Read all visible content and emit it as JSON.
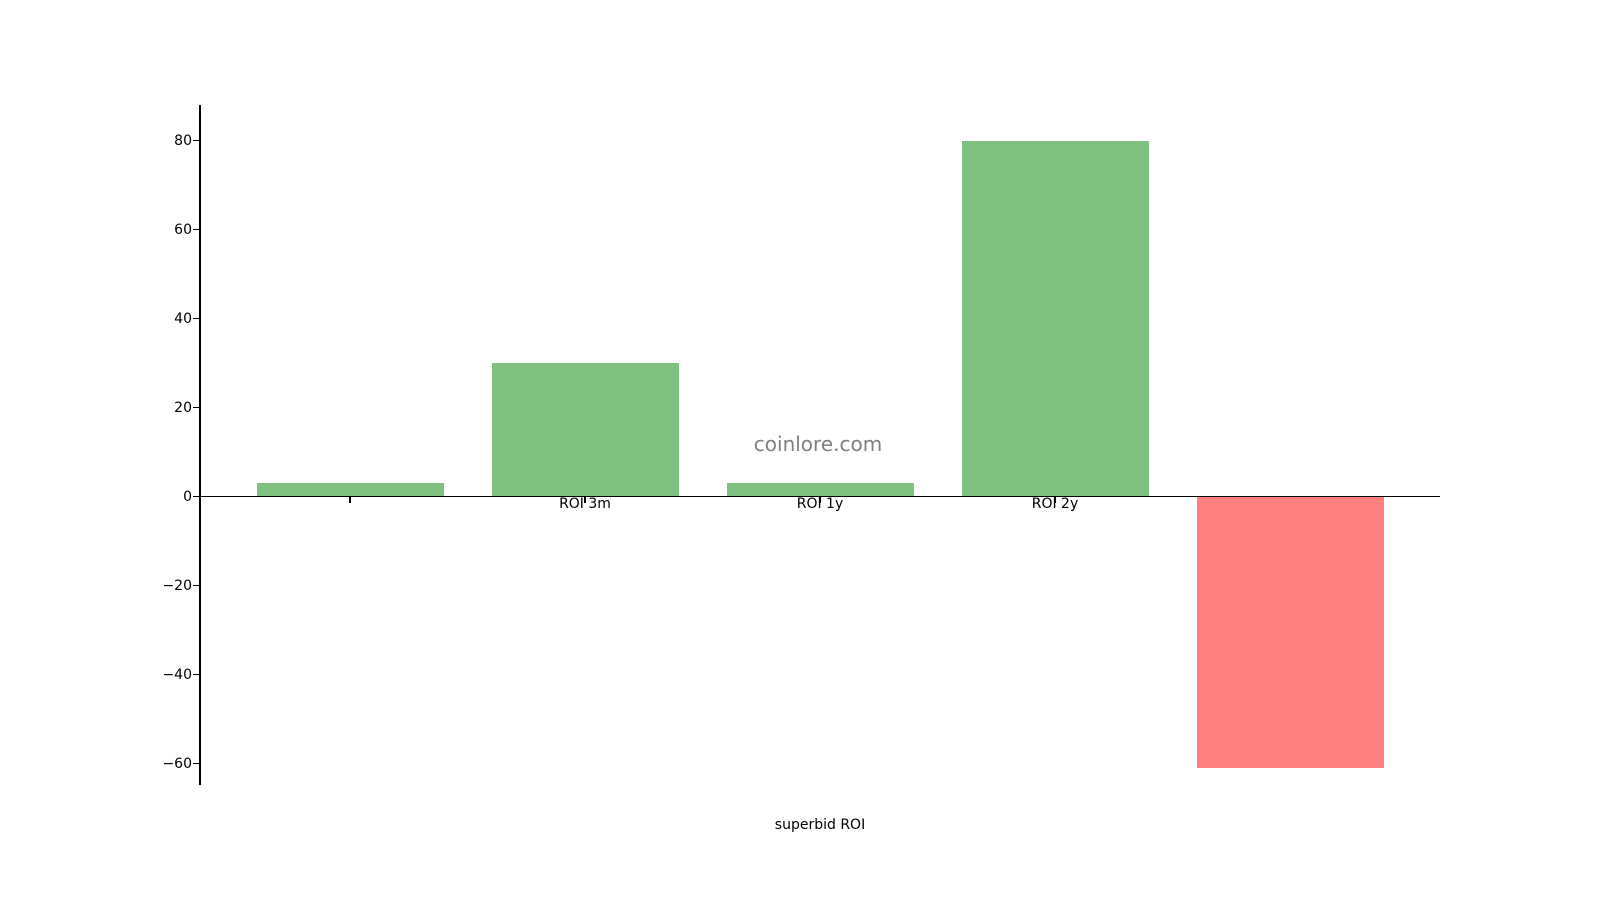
{
  "page": {
    "background": "#ffffff"
  },
  "watermark": {
    "text": "coinlore.com",
    "color": "#808080"
  },
  "chart_data": {
    "type": "bar",
    "title": "superbid ROI",
    "categories": [
      "",
      "ROI 3m",
      "ROI 1y",
      "ROI 2y",
      ""
    ],
    "values": [
      3,
      30,
      3,
      80,
      -61
    ],
    "series_name": "superbid ROI",
    "positive_color": "#80c080",
    "negative_color": "#ff8080",
    "yticks": [
      80,
      60,
      40,
      20,
      0,
      -20,
      -40,
      -60
    ],
    "ylim": [
      -65,
      88
    ],
    "xlabel": "",
    "ylabel": "",
    "grid": false,
    "legend": null,
    "axis_color": "#000000",
    "tick_label_color": "#000000",
    "minus_sign": "−"
  }
}
